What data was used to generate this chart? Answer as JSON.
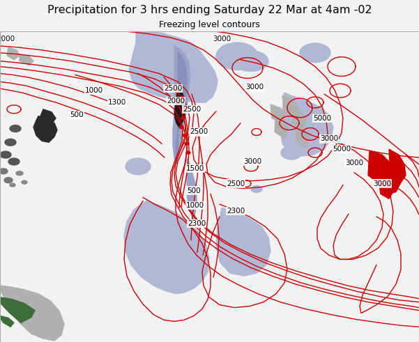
{
  "title": "Precipitation for 3 hrs ending Saturday 22 Mar at 4am -02",
  "subtitle": "Freezing level contours",
  "title_fontsize": 11.5,
  "subtitle_fontsize": 9,
  "ocean_color": "#c8cee0",
  "precip_light": "#b0b8d5",
  "precip_mid": "#9aa3c8",
  "precip_dark": "#8890bc",
  "land_gray": "#b0b0b0",
  "land_dark": "#888888",
  "land_green": "#3d6e3a",
  "contour_color": "#cc0000",
  "header_color": "#f2f2f2",
  "label_bg": "#c8cee0",
  "figsize": [
    6.01,
    4.91
  ],
  "dpi": 100
}
